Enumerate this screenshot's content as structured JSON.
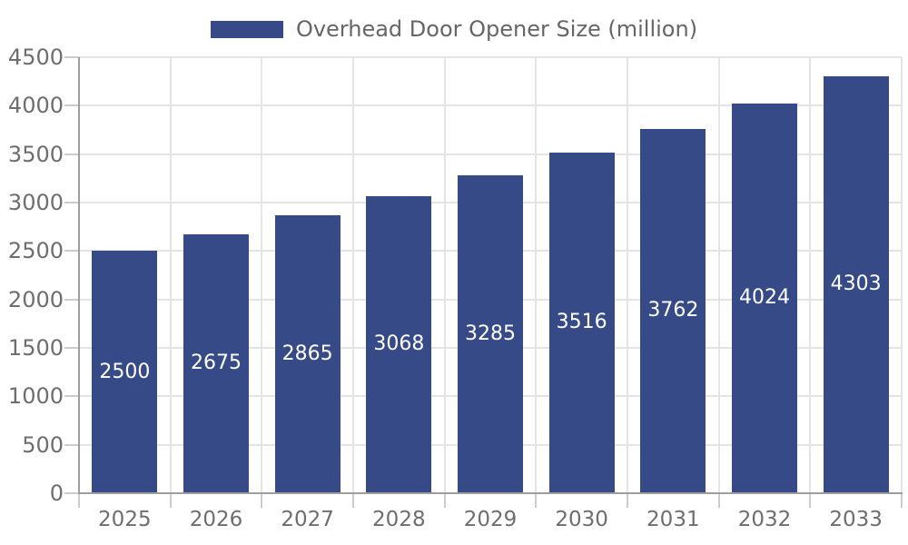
{
  "chart_data": {
    "type": "bar",
    "title": "Overhead Door Opener Size (million)",
    "categories": [
      "2025",
      "2026",
      "2027",
      "2028",
      "2029",
      "2030",
      "2031",
      "2032",
      "2033"
    ],
    "values": [
      2500,
      2675,
      2865,
      3068,
      3285,
      3516,
      3762,
      4024,
      4303
    ],
    "xlabel": "",
    "ylabel": "",
    "ylim": [
      0,
      4500
    ],
    "ytick_step": 500,
    "grid": true,
    "legend_position": "top-center",
    "bar_color": "#364a87",
    "bar_label_color": "#ffffff",
    "axis_text_color": "#6e6e6e",
    "gridline_color": "#e4e4e4",
    "axis_line_color": "#9e9e9e"
  }
}
